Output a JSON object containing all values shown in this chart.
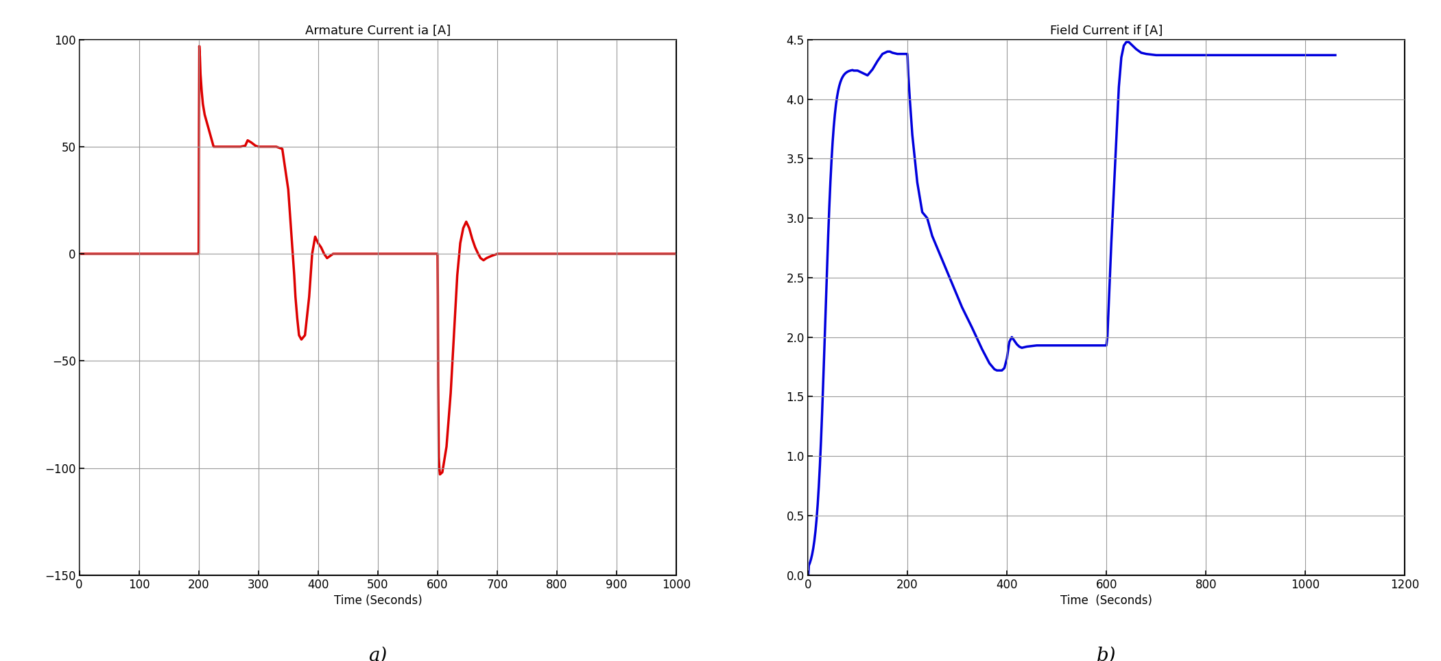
{
  "title_a": "Armature Current ia [A]",
  "title_b": "Field Current if [A]",
  "xlabel_a": "Time (Seconds)",
  "xlabel_b": "Time  (Seconds)",
  "label_a": "a)",
  "label_b": "b)",
  "xlim_a": [
    0,
    1000
  ],
  "xlim_b": [
    0,
    1200
  ],
  "ylim_a": [
    -150,
    100
  ],
  "ylim_b": [
    0,
    4.5
  ],
  "xticks_a": [
    0,
    100,
    200,
    300,
    400,
    500,
    600,
    700,
    800,
    900,
    1000
  ],
  "xticks_b": [
    0,
    200,
    400,
    600,
    800,
    1000,
    1200
  ],
  "yticks_a": [
    -150,
    -100,
    -50,
    0,
    50,
    100
  ],
  "yticks_b": [
    0,
    0.5,
    1.0,
    1.5,
    2.0,
    2.5,
    3.0,
    3.5,
    4.0,
    4.5
  ],
  "color_a": "#dd0000",
  "color_b": "#0000dd",
  "linewidth": 2.5,
  "background": "#ffffff",
  "grid_color": "#999999",
  "title_fontsize": 13,
  "tick_fontsize": 12,
  "label_fontsize": 12,
  "sublabel_fontsize": 20
}
